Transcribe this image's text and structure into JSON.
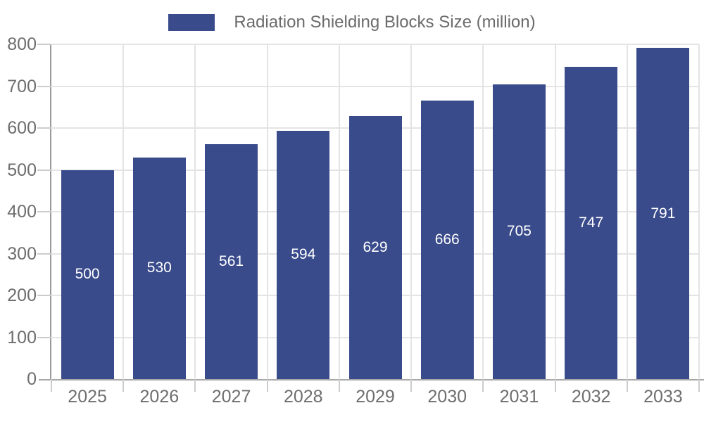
{
  "legend": {
    "label": "Radiation Shielding Blocks Size (million)"
  },
  "chart_data": {
    "type": "bar",
    "title": "Radiation Shielding Blocks Size (million)",
    "categories": [
      "2025",
      "2026",
      "2027",
      "2028",
      "2029",
      "2030",
      "2031",
      "2032",
      "2033"
    ],
    "values": [
      500,
      530,
      561,
      594,
      629,
      666,
      705,
      747,
      791
    ],
    "series": [
      {
        "name": "Radiation Shielding Blocks Size (million)",
        "values": [
          500,
          530,
          561,
          594,
          629,
          666,
          705,
          747,
          791
        ]
      }
    ],
    "xlabel": "",
    "ylabel": "",
    "ylim": [
      0,
      800
    ],
    "yticks": [
      0,
      100,
      200,
      300,
      400,
      500,
      600,
      700,
      800
    ],
    "grid": true,
    "legend_position": "top",
    "value_labels": "inside-center"
  },
  "colors": {
    "bar": "#3A4B8C",
    "value_label": "#ffffff",
    "legend_text": "#6b6b6b",
    "tick_label": "#6e6e6e",
    "gridline": "#e4e4e4",
    "y_axis_line": "#999999",
    "x_axis_line": "#a8a8a8",
    "tick_mark": "#cccccc",
    "background": "#ffffff"
  }
}
